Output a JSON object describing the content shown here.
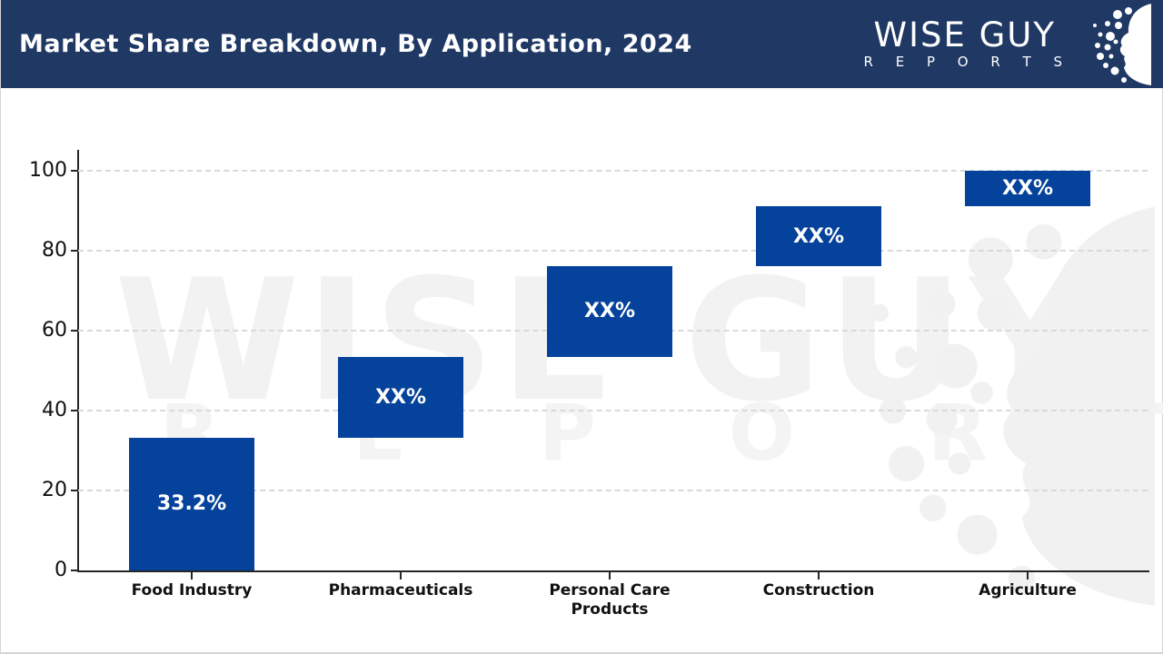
{
  "header": {
    "title": "Market Share Breakdown, By Application, 2024",
    "bg_color": "#1f3864",
    "logo": {
      "line1": "WISE GUY",
      "line2": "R E P O R T S"
    }
  },
  "watermark": {
    "line1": "WISE GUY",
    "line2": "R E P O R T S"
  },
  "chart_data": {
    "type": "bar",
    "subtype": "floating-segment-waterfall",
    "title": "Market Share Breakdown, By Application, 2024",
    "xlabel": "",
    "ylabel": "",
    "ylim": [
      0,
      100
    ],
    "yticks": [
      0,
      20,
      40,
      60,
      80,
      100
    ],
    "grid": "horizontal-dashed",
    "legend": "none",
    "bar_color": "#05429b",
    "bar_label_color": "#ffffff",
    "categories": [
      "Food Industry",
      "Pharmaceuticals",
      "Personal Care\nProducts",
      "Construction",
      "Agriculture"
    ],
    "segments": [
      {
        "category": "Food Industry",
        "start": 0,
        "end": 33.2,
        "label": "33.2%"
      },
      {
        "category": "Pharmaceuticals",
        "start": 33.2,
        "end": 53.5,
        "label": "XX%"
      },
      {
        "category": "Personal Care Products",
        "start": 53.5,
        "end": 76.1,
        "label": "XX%"
      },
      {
        "category": "Construction",
        "start": 76.1,
        "end": 91.1,
        "label": "XX%"
      },
      {
        "category": "Agriculture",
        "start": 91.1,
        "end": 100,
        "label": "XX%"
      }
    ]
  }
}
